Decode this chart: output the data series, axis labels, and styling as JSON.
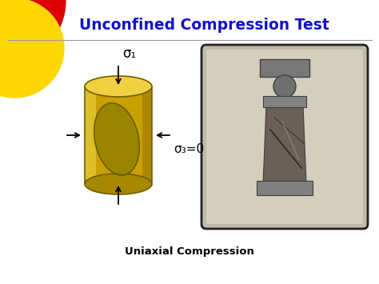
{
  "title": "Unconfined Compression Test",
  "title_color": "#1111CC",
  "title_fontsize": 13.5,
  "subtitle": "Uniaxial Compression",
  "subtitle_fontsize": 9.5,
  "subtitle_color": "#000000",
  "bg_color": "#FFFFFF",
  "red_circle_color": "#DD0000",
  "yellow_circle_color": "#FFD700",
  "cyl_body_color": "#C8A000",
  "cyl_top_color": "#F0D040",
  "cyl_bot_color": "#A88800",
  "cyl_left_highlight": "#F0D850",
  "cyl_right_shadow": "#906800",
  "slip_color": "#908000",
  "slip_edge_color": "#605000",
  "sep_line_color": "#999999",
  "arrow_color": "#000000",
  "sigma1_label": "σ₁",
  "sigma3_label": "σ₃=0",
  "photo_bg": "#C8C0A8",
  "photo_border": "#222222",
  "photo_wall": "#D8D0C0",
  "metal_color": "#909090",
  "metal_dark": "#606060",
  "rock_color": "#706860",
  "rock_light": "#908880"
}
